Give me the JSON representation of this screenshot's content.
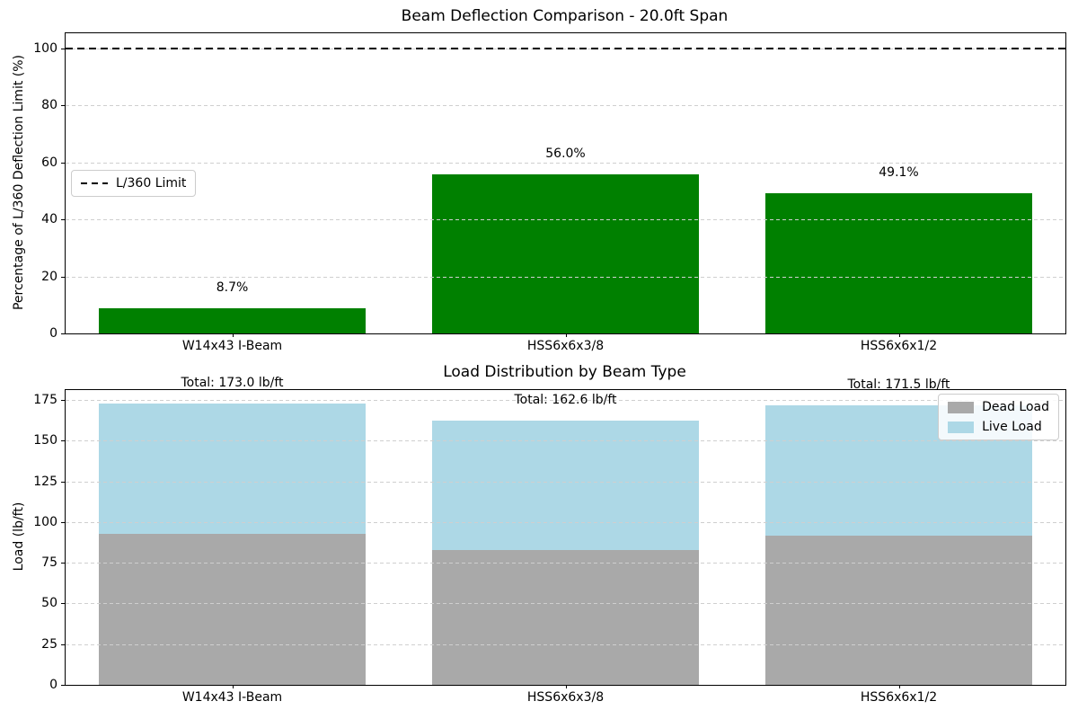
{
  "chart_data": [
    {
      "id": "deflection-comparison",
      "type": "bar",
      "title": "Beam Deflection Comparison - 20.0ft Span",
      "xlabel": "",
      "ylabel": "Percentage of L/360 Deflection Limit (%)",
      "categories": [
        "W14x43 I-Beam",
        "HSS6x6x3/8",
        "HSS6x6x1/2"
      ],
      "values": [
        8.7,
        56.0,
        49.1
      ],
      "bar_labels": [
        "8.7%",
        "56.0%",
        "49.1%"
      ],
      "bar_color": "#008000",
      "ylim": [
        0,
        105.4
      ],
      "yticks": [
        0,
        20,
        40,
        60,
        80,
        100
      ],
      "grid": true,
      "ref_line": {
        "value": 100,
        "label": "L/360 Limit",
        "color": "#000000",
        "style": "dashed"
      },
      "legend": {
        "position": "inside-left",
        "items": [
          {
            "label": "L/360 Limit",
            "swatch": "dashed-line",
            "color": "#000000"
          }
        ]
      }
    },
    {
      "id": "load-distribution",
      "type": "stacked-bar",
      "title": "Load Distribution by Beam Type",
      "xlabel": "",
      "ylabel": "Load (lb/ft)",
      "categories": [
        "W14x43 I-Beam",
        "HSS6x6x3/8",
        "HSS6x6x1/2"
      ],
      "series": [
        {
          "name": "Dead Load",
          "values": [
            93.0,
            82.6,
            91.5
          ],
          "color": "#a9a9a9"
        },
        {
          "name": "Live Load",
          "values": [
            80.0,
            80.0,
            80.0
          ],
          "color": "#add8e6"
        }
      ],
      "totals": [
        "Total: 173.0 lb/ft",
        "Total: 162.6 lb/ft",
        "Total: 171.5 lb/ft"
      ],
      "total_values": [
        173.0,
        162.6,
        171.5
      ],
      "ylim": [
        0,
        181.1
      ],
      "yticks": [
        0,
        25,
        50,
        75,
        100,
        125,
        150,
        175
      ],
      "grid": true,
      "legend": {
        "position": "inside-top-right",
        "items": [
          {
            "label": "Dead Load",
            "swatch": "patch",
            "color": "#a9a9a9"
          },
          {
            "label": "Live Load",
            "swatch": "patch",
            "color": "#add8e6"
          }
        ]
      }
    }
  ]
}
